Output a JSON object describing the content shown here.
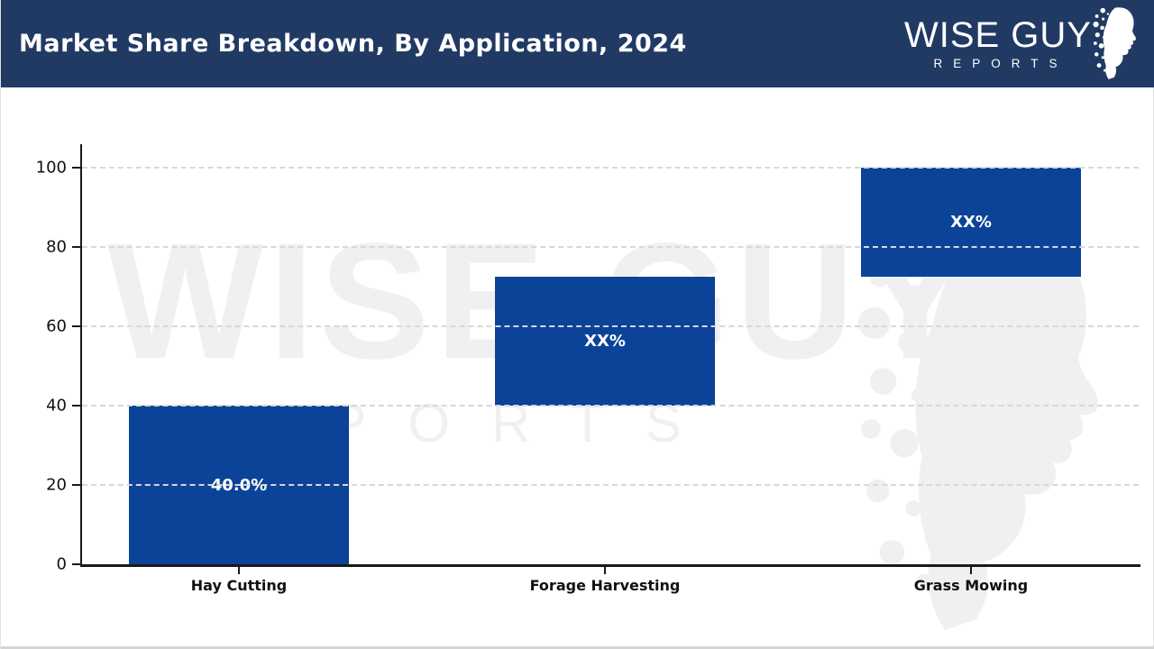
{
  "header": {
    "title": "Market Share Breakdown, By Application, 2024",
    "logo": {
      "line1": "WISE GUY",
      "line2": "REPORTS"
    }
  },
  "watermark": {
    "line1": "WISE GUY",
    "line2": "REPORTS"
  },
  "chart_data": {
    "type": "bar",
    "variant": "floating-waterfall",
    "title": "Market Share Breakdown, By Application, 2024",
    "categories": [
      "Hay Cutting",
      "Forage Harvesting",
      "Grass Mowing"
    ],
    "segments": [
      {
        "category": "Hay Cutting",
        "start": 0,
        "end": 40,
        "value": 40.0,
        "label": "40.0%"
      },
      {
        "category": "Forage Harvesting",
        "start": 40,
        "end": 72.5,
        "value": 32.5,
        "label": "XX%"
      },
      {
        "category": "Grass Mowing",
        "start": 72.5,
        "end": 100,
        "value": 27.5,
        "label": "XX%"
      }
    ],
    "yticks": [
      0,
      20,
      40,
      60,
      80,
      100
    ],
    "ylim": [
      0,
      100
    ],
    "xlabel": "",
    "ylabel": "",
    "grid": "horizontal-dashed",
    "legend": "none",
    "bar_color": "#0b4398",
    "bar_label_color": "#ffffff",
    "header_color": "#213a64",
    "watermark_color": "#f0f0f2"
  }
}
